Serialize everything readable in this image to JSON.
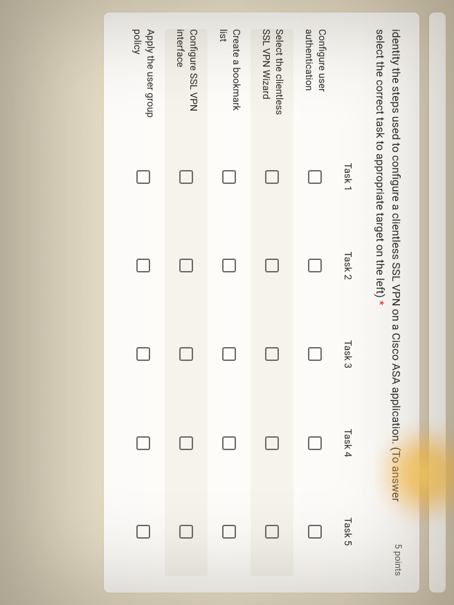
{
  "question": {
    "text": "identity the steps used to configure a clientless SSL VPN on a Cisco ASA application. (To answer select the correct task to appropriate target on the left)",
    "required_mark": "*",
    "points_label": "5 points"
  },
  "columns": [
    "Task 1",
    "Task 2",
    "Task 3",
    "Task 4",
    "Task 5"
  ],
  "rows": [
    {
      "label": "Configure user authentication"
    },
    {
      "label": "Select the clientless SSL VPN Wizard"
    },
    {
      "label": "Create a bookmark list"
    },
    {
      "label": "Configure SSL VPN interface"
    },
    {
      "label": "Apply the user group policy"
    }
  ],
  "colors": {
    "card_bg": "#ffffff",
    "text": "#2a2a2a",
    "muted": "#5f5f5f",
    "checkbox_border": "#6b6b6b",
    "required": "#d93025"
  }
}
